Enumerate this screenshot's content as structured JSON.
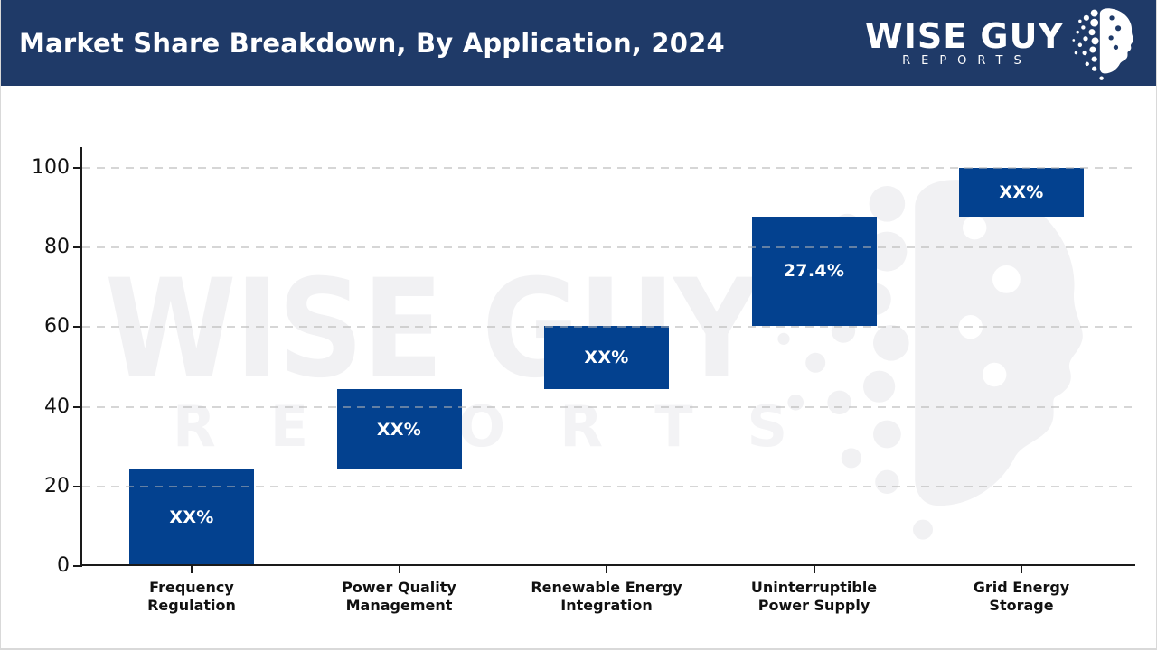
{
  "header": {
    "title": "Market Share Breakdown, By Application, 2024",
    "logo": {
      "line1": "WISE GUY",
      "line2": "REPORTS"
    }
  },
  "watermark": {
    "line1": "WISE GUY",
    "line2": "REPORTS"
  },
  "colors": {
    "header_bg": "#1f3a68",
    "bar": "#03418f",
    "bar_label": "#ffffff",
    "grid": "#b4b4b4",
    "axis": "#1a1a1a",
    "watermark": "#f1f1f3"
  },
  "chart_data": {
    "type": "bar",
    "subtype": "waterfall",
    "title": "Market Share Breakdown, By Application, 2024",
    "categories": [
      "Frequency\nRegulation",
      "Power Quality\nManagement",
      "Renewable Energy\nIntegration",
      "Uninterruptible\nPower Supply",
      "Grid Energy\nStorage"
    ],
    "segments": [
      {
        "category": "Frequency\nRegulation",
        "start": 0,
        "end": 24.3,
        "label": "XX%"
      },
      {
        "category": "Power Quality\nManagement",
        "start": 24.3,
        "end": 44.4,
        "label": "XX%"
      },
      {
        "category": "Renewable Energy\nIntegration",
        "start": 44.4,
        "end": 60.4,
        "label": "XX%"
      },
      {
        "category": "Uninterruptible\nPower Supply",
        "start": 60.4,
        "end": 87.8,
        "label": "27.4%"
      },
      {
        "category": "Grid Energy\nStorage",
        "start": 87.8,
        "end": 100,
        "label": "XX%"
      }
    ],
    "yticks": [
      0,
      20,
      40,
      60,
      80,
      100
    ],
    "ylim": [
      0,
      105
    ],
    "xlabel": "",
    "ylabel": "",
    "grid": "horizontal-dashed",
    "legend": "none"
  }
}
